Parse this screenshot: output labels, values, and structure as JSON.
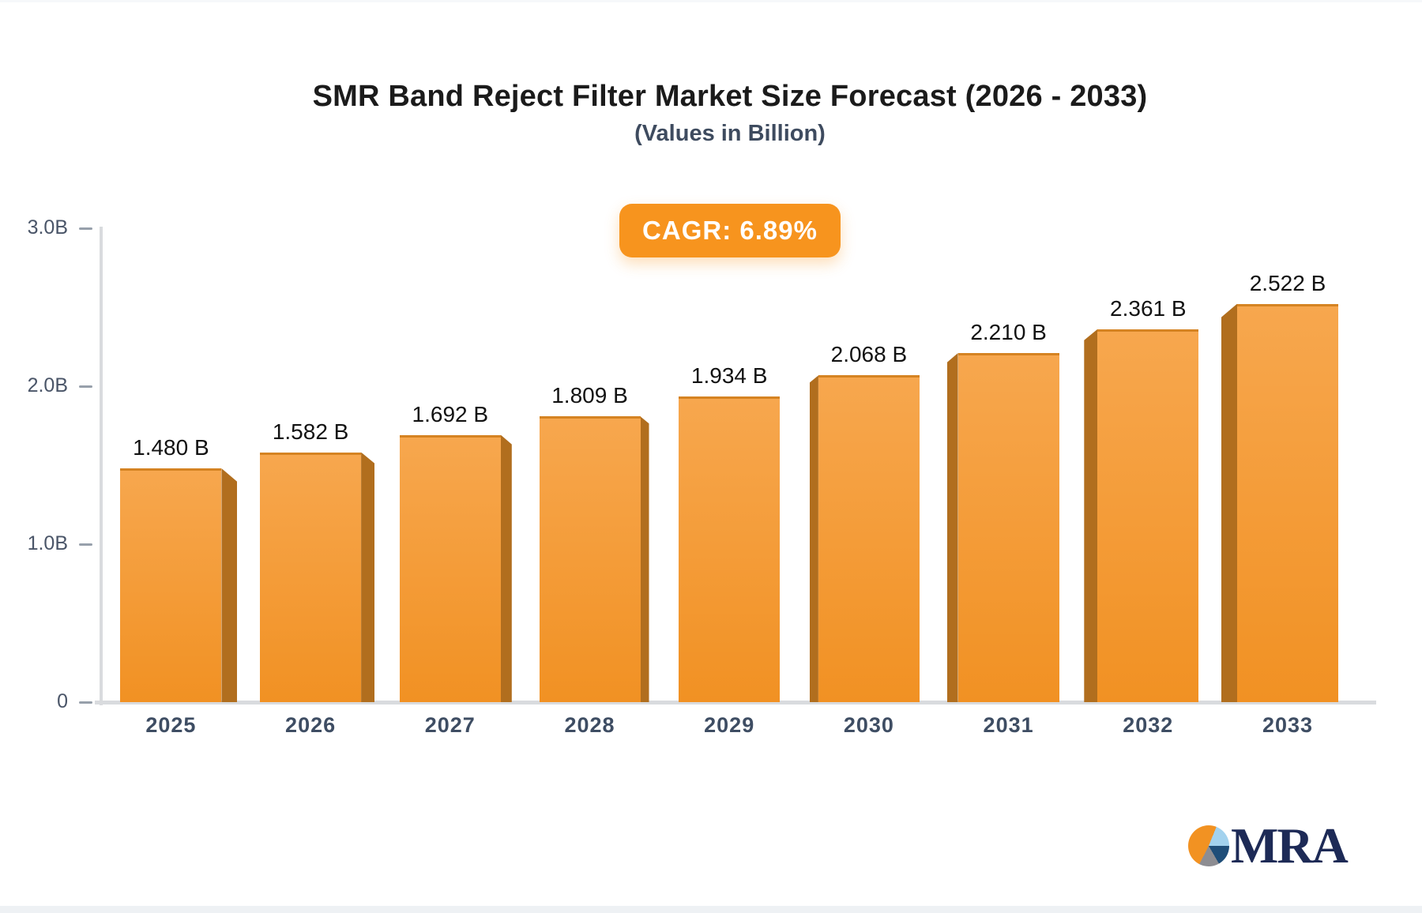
{
  "header": {
    "title": "SMR Band Reject Filter Market Size Forecast (2026 - 2033)",
    "subtitle": "(Values in Billion)"
  },
  "badge": {
    "label": "CAGR: 6.89%"
  },
  "logo": {
    "text": "MRA",
    "pie_colors": [
      "#f29222",
      "#a3d2ee",
      "#1f4e79",
      "#8d8d92"
    ]
  },
  "colors": {
    "bar_front": "#f5a043",
    "bar_front_gradient_top": "#f7a74e",
    "bar_front_gradient_bottom": "#f19123",
    "bar_side": "#b16e1e",
    "badge_orange": "#f7941e",
    "axis_gray": "#d9dbde",
    "tick_gray": "#97a0ab",
    "ytick_text": "#4a5568",
    "xtick_text": "#3e4d63",
    "title_text": "#1b1b1b",
    "subtitle_text": "#3e4b5f",
    "value_text": "#121212",
    "logo_navy": "#1d2a56"
  },
  "chart_data": {
    "type": "bar",
    "title": "SMR Band Reject Filter Market Size Forecast (2026 - 2033)",
    "subtitle": "(Values in Billion)",
    "cagr_label": "CAGR: 6.89%",
    "categories": [
      "2025",
      "2026",
      "2027",
      "2028",
      "2029",
      "2030",
      "2031",
      "2032",
      "2033"
    ],
    "values": [
      1.48,
      1.582,
      1.692,
      1.809,
      1.934,
      2.068,
      2.21,
      2.361,
      2.522
    ],
    "bar_labels": [
      "1.480 B",
      "1.582 B",
      "1.692 B",
      "1.809 B",
      "1.934 B",
      "2.068 B",
      "2.210 B",
      "2.361 B",
      "2.522 B"
    ],
    "xlabel": "",
    "ylabel": "",
    "ylim": [
      0,
      3
    ],
    "yticks": [
      {
        "value": 0,
        "label": "0"
      },
      {
        "value": 1,
        "label": "1.0B"
      },
      {
        "value": 2,
        "label": "2.0B"
      },
      {
        "value": 3,
        "label": "3.0B"
      }
    ],
    "grid": false,
    "legend": false,
    "style": "3d-extruded-bars, perspective vanishing point at center bar"
  }
}
